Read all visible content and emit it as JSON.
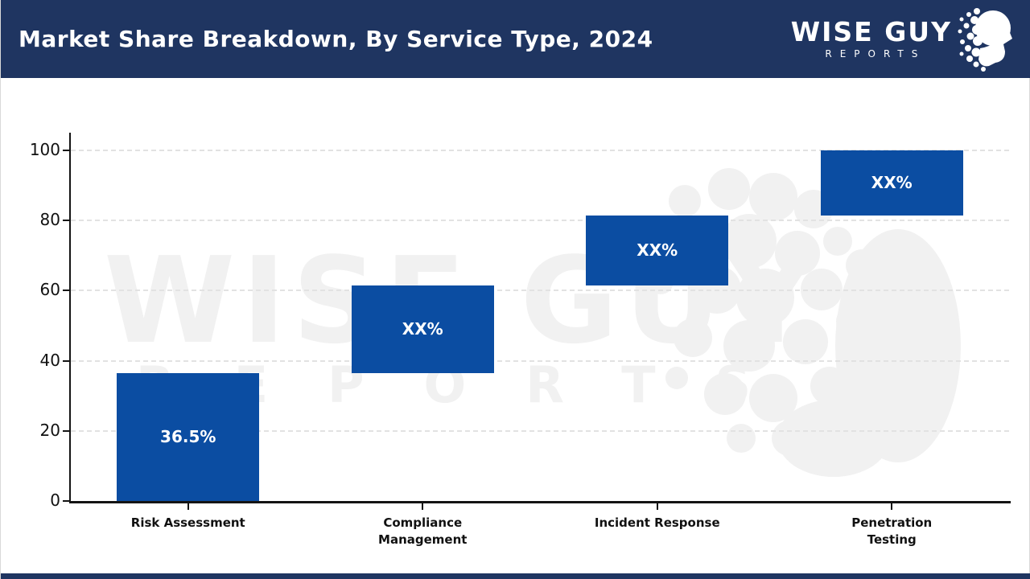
{
  "header": {
    "title": "Market Share Breakdown, By Service Type, 2024",
    "bg_color": "#1F3561",
    "logo": {
      "line1": "WISE GUY",
      "line2": "REPORTS"
    }
  },
  "watermark": {
    "line1": "WISE GUY",
    "line2": "REPORTS"
  },
  "chart_data": {
    "type": "bar",
    "subtype": "floating-waterfall",
    "title": "Market Share Breakdown, By Service Type, 2024",
    "categories": [
      "Risk Assessment",
      "Compliance Management",
      "Incident Response",
      "Penetration Testing"
    ],
    "category_lines": [
      [
        "Risk Assessment"
      ],
      [
        "Compliance",
        "Management"
      ],
      [
        "Incident Response"
      ],
      [
        "Penetration",
        "Testing"
      ]
    ],
    "segments": [
      {
        "category": "Risk Assessment",
        "y_start": 0,
        "y_end": 36.5,
        "label": "36.5%"
      },
      {
        "category": "Compliance Management",
        "y_start": 36.5,
        "y_end": 61.5,
        "label": "XX%"
      },
      {
        "category": "Incident Response",
        "y_start": 61.5,
        "y_end": 81.5,
        "label": "XX%"
      },
      {
        "category": "Penetration Testing",
        "y_start": 81.5,
        "y_end": 100,
        "label": "XX%"
      }
    ],
    "yticks": [
      0,
      20,
      40,
      60,
      80,
      100
    ],
    "ylim": [
      0,
      105
    ],
    "xlabel": "",
    "ylabel": "",
    "grid": true,
    "gridline_style": "dashed",
    "legend": "none",
    "bar_color": "#0B4DA2",
    "bar_label_color": "#ffffff"
  },
  "footer": {
    "bg_color": "#1F3561"
  }
}
